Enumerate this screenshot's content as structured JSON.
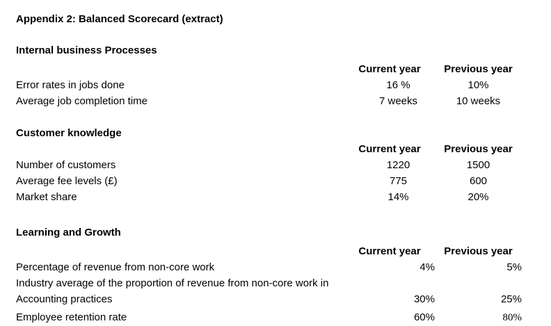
{
  "title": "Appendix 2: Balanced Scorecard (extract)",
  "columns": {
    "current": "Current year",
    "previous": "Previous year"
  },
  "sections": [
    {
      "heading": "Internal business Processes",
      "rows": [
        {
          "label": "Error rates in jobs done",
          "current": "16 %",
          "previous": "10%"
        },
        {
          "label": "Average job completion time",
          "current": "7 weeks",
          "previous": "10 weeks"
        }
      ]
    },
    {
      "heading": "Customer knowledge",
      "rows": [
        {
          "label": "Number of customers",
          "current": "1220",
          "previous": "1500"
        },
        {
          "label": "Average fee levels (£)",
          "current": "775",
          "previous": "600"
        },
        {
          "label": "Market share",
          "current": "14%",
          "previous": "20%"
        }
      ]
    },
    {
      "heading": "Learning and Growth",
      "rows": [
        {
          "label": "Percentage of revenue from non-core work",
          "current": "4%",
          "previous": "5%"
        },
        {
          "label": "Industry average of the proportion of revenue from non-core work in"
        },
        {
          "label": "Accounting practices",
          "current": "30%",
          "previous": "25%"
        },
        {
          "label": "Employee retention rate",
          "current": "60%",
          "previous": "80%"
        }
      ]
    }
  ]
}
